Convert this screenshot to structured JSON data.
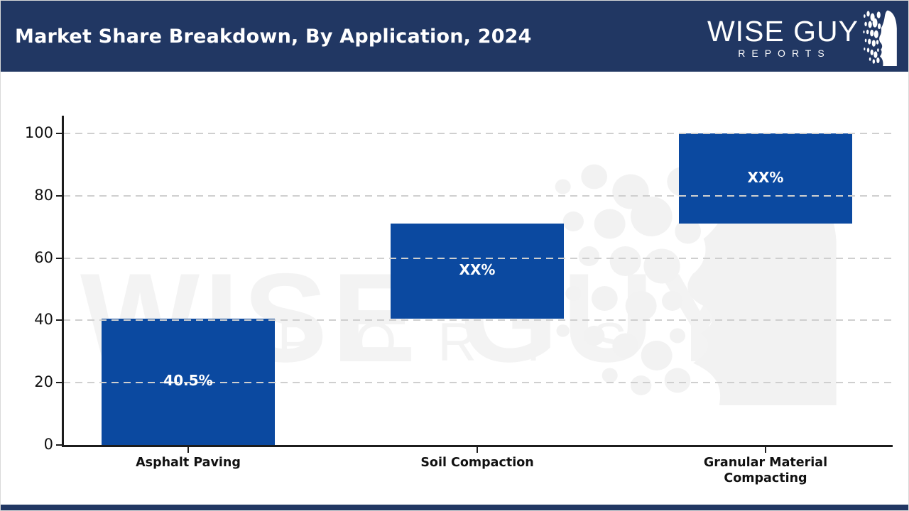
{
  "header": {
    "title": "Market Share Breakdown, By Application, 2024",
    "logo": {
      "line1": "WISE GUY",
      "line2": "REPORTS"
    },
    "bg_color": "#213763"
  },
  "watermark": {
    "line1": "WISE GUY",
    "line2": "REPORTS"
  },
  "chart_data": {
    "type": "bar",
    "subtype": "floating-waterfall",
    "title": "Market Share Breakdown, By Application, 2024",
    "categories": [
      "Asphalt Paving",
      "Soil Compaction",
      "Granular Material\nCompacting"
    ],
    "segments": [
      {
        "category": "Asphalt Paving",
        "start": 0,
        "end": 40.5,
        "label": "40.5%"
      },
      {
        "category": "Soil Compaction",
        "start": 40.5,
        "end": 71,
        "label": "XX%"
      },
      {
        "category": "Granular Material Compacting",
        "start": 71,
        "end": 100,
        "label": "XX%"
      }
    ],
    "xlabel": "",
    "ylabel": "",
    "ylim": [
      0,
      100
    ],
    "yticks": [
      0,
      20,
      40,
      60,
      80,
      100
    ],
    "grid": "horizontal-dashed-over-bars",
    "legend": "none",
    "bar_color": "#0b49a0",
    "bar_label_color": "#ffffff",
    "gridline_color": "#cfcfcf",
    "axis_color": "#1c1c1c"
  }
}
